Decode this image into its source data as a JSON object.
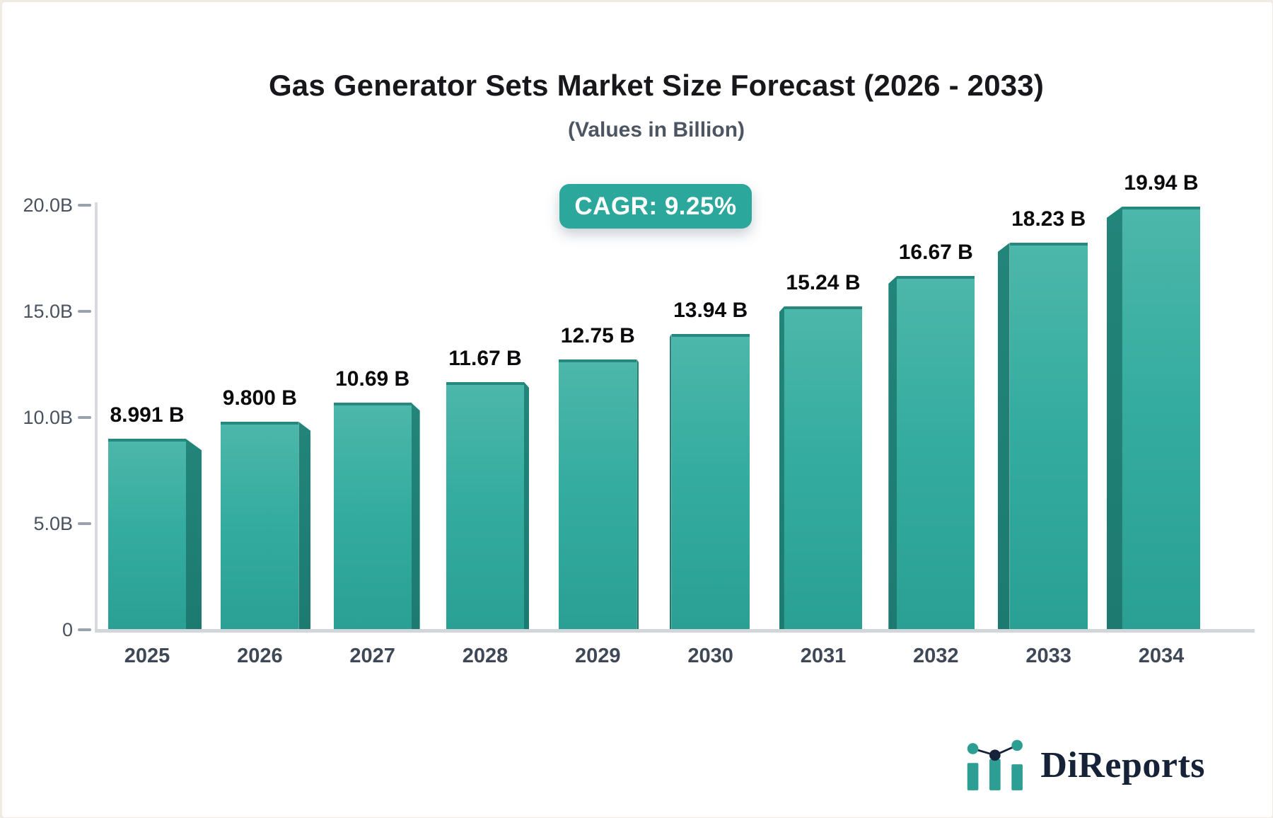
{
  "title": "Gas Generator Sets Market Size Forecast (2026 - 2033)",
  "subtitle": "(Values in Billion)",
  "badge": {
    "label": "CAGR: 9.25%",
    "bg_color": "#2BA89B"
  },
  "logo": {
    "text": "DiReports",
    "icon": "mini-bar-line-chart-icon",
    "accent_color": "#2D9E93",
    "text_color": "#152238"
  },
  "chart_data": {
    "type": "bar",
    "title": "Gas Generator Sets Market Size Forecast (2026 - 2033)",
    "subtitle": "(Values in Billion)",
    "xlabel": "",
    "ylabel": "",
    "ylim": [
      0,
      20
    ],
    "grid": false,
    "legend": "none",
    "categories": [
      "2025",
      "2026",
      "2027",
      "2028",
      "2029",
      "2030",
      "2031",
      "2032",
      "2033",
      "2034"
    ],
    "values": [
      8.991,
      9.8,
      10.69,
      11.67,
      12.75,
      13.94,
      15.24,
      16.67,
      18.23,
      19.94
    ],
    "value_labels": [
      "8.991 B",
      "9.800 B",
      "10.69 B",
      "11.67 B",
      "12.75 B",
      "13.94 B",
      "15.24 B",
      "16.67 B",
      "18.23 B",
      "19.94 B"
    ],
    "y_ticks": [
      {
        "value": 20,
        "label": "20.0B"
      },
      {
        "value": 15,
        "label": "15.0B"
      },
      {
        "value": 10,
        "label": "10.0B"
      },
      {
        "value": 5,
        "label": "5.0B"
      },
      {
        "value": 0,
        "label": "0"
      }
    ],
    "bar_colors": {
      "face_top": "#4CB7AA",
      "face_bottom": "#29A093",
      "side": "#1D7A70",
      "top_edge": "#27897D"
    }
  }
}
